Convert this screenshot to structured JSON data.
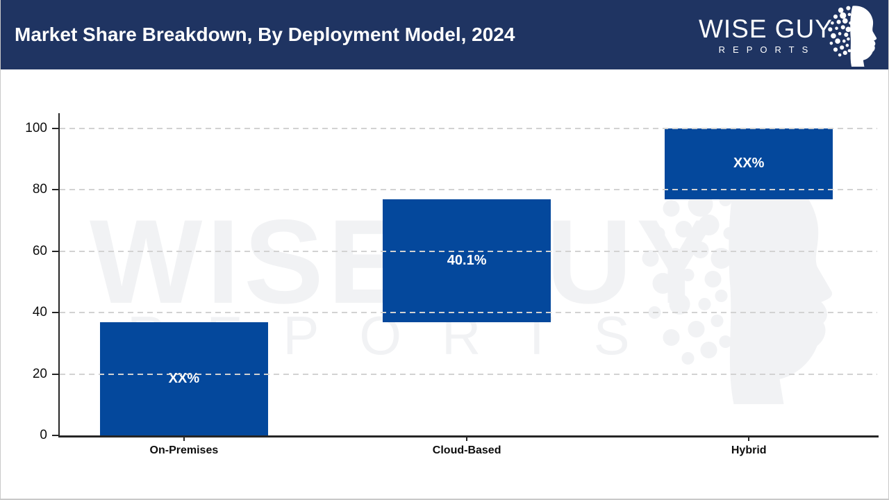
{
  "header": {
    "title": "Market Share Breakdown, By Deployment Model, 2024"
  },
  "brand": {
    "line1": "WISE GUY",
    "line2": "REPORTS"
  },
  "watermark": {
    "line1": "WISE GUY",
    "line2": "REPORTS"
  },
  "chart_data": {
    "type": "bar",
    "subtype": "waterfall",
    "title": "Market Share Breakdown, By Deployment Model, 2024",
    "xlabel": "",
    "ylabel": "",
    "categories": [
      "On-Premises",
      "Cloud-Based",
      "Hybrid"
    ],
    "segments": [
      {
        "category": "On-Premises",
        "start": 0,
        "end": 36.9,
        "value_label": "XX%"
      },
      {
        "category": "Cloud-Based",
        "start": 36.9,
        "end": 77.0,
        "value_label": "40.1%"
      },
      {
        "category": "Hybrid",
        "start": 77.0,
        "end": 100,
        "value_label": "XX%"
      }
    ],
    "yticks": [
      0,
      20,
      40,
      60,
      80,
      100
    ],
    "ylim": [
      0,
      105
    ],
    "grid": "horizontal-dashed-over-bars",
    "legend": "none",
    "colors": {
      "bar": "#04489c",
      "bar_label": "#ffffff",
      "axis": "#262626",
      "gridline": "#d2d2d2",
      "tick_label": "#0d0d0d",
      "header_bg": "#1f3462",
      "header_text": "#ffffff",
      "watermark": "#f1f2f4",
      "plot_bg": "#ffffff"
    }
  }
}
